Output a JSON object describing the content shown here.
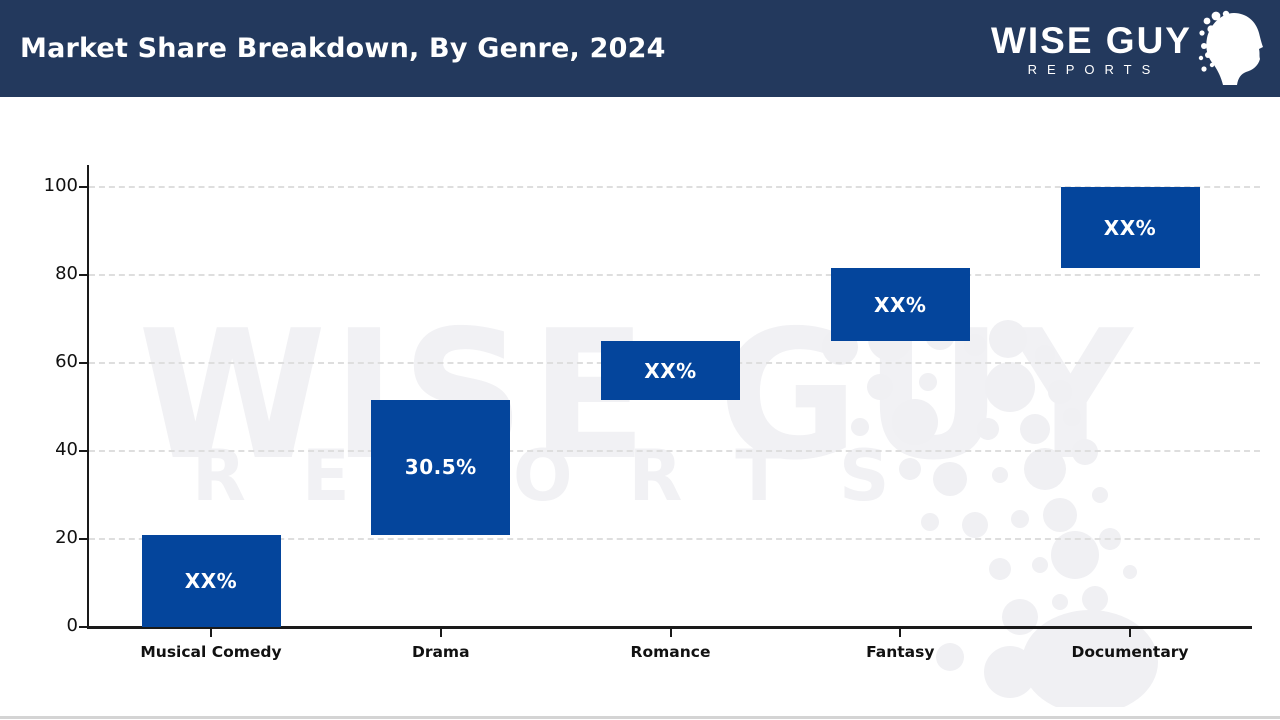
{
  "header": {
    "title": "Market Share Breakdown, By Genre, 2024"
  },
  "logo": {
    "line1": "WISE GUY",
    "line2": "REPORTS"
  },
  "watermark": {
    "line1": "WISE GUY",
    "line2": "REPORTS"
  },
  "colors": {
    "header_bg": "#23395d",
    "bar": "#04459c",
    "grid": "#dedede",
    "axis": "#1a1a1a",
    "watermark": "#f1f1f4",
    "bar_label": "#ffffff"
  },
  "chart_data": {
    "type": "bar",
    "subtype": "waterfall",
    "title": "Market Share Breakdown, By Genre, 2024",
    "categories": [
      "Musical Comedy",
      "Drama",
      "Romance",
      "Fantasy",
      "Documentary"
    ],
    "bars": [
      {
        "category": "Musical Comedy",
        "start": 0,
        "end": 21,
        "value": 21,
        "label": "XX%"
      },
      {
        "category": "Drama",
        "start": 21,
        "end": 51.5,
        "value": 30.5,
        "label": "30.5%"
      },
      {
        "category": "Romance",
        "start": 51.5,
        "end": 65,
        "value": 13.5,
        "label": "XX%"
      },
      {
        "category": "Fantasy",
        "start": 65,
        "end": 81.5,
        "value": 16.5,
        "label": "XX%"
      },
      {
        "category": "Documentary",
        "start": 81.5,
        "end": 100,
        "value": 18.5,
        "label": "XX%"
      }
    ],
    "y_ticks": [
      0,
      20,
      40,
      60,
      80,
      100
    ],
    "ylim": [
      0,
      105
    ],
    "xlabel": "",
    "ylabel": "",
    "grid": "horizontal-dashed",
    "legend": "none"
  }
}
